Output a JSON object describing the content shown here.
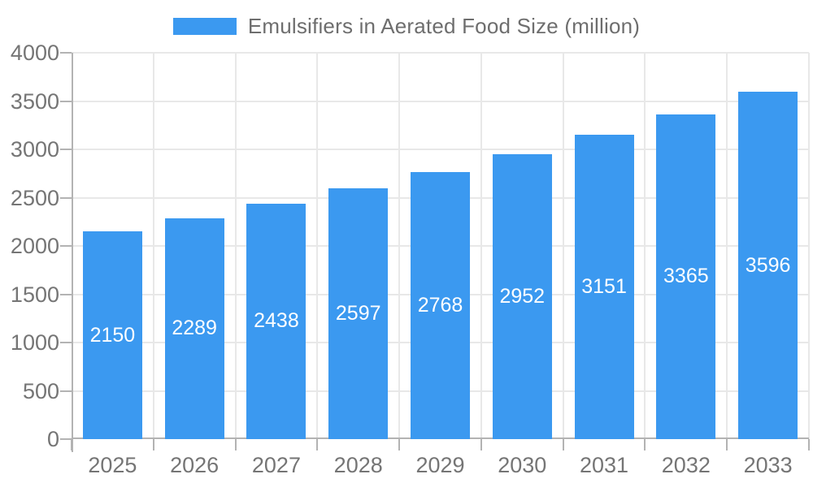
{
  "legend": {
    "label": "Emulsifiers in Aerated Food Size (million)",
    "swatch_color": "#3b99f0"
  },
  "chart_data": {
    "type": "bar",
    "categories": [
      "2025",
      "2026",
      "2027",
      "2028",
      "2029",
      "2030",
      "2031",
      "2032",
      "2033"
    ],
    "values": [
      2150,
      2289,
      2438,
      2597,
      2768,
      2952,
      3151,
      3365,
      3596
    ],
    "series_name": "Emulsifiers in Aerated Food Size (million)",
    "title": "",
    "xlabel": "",
    "ylabel": "",
    "ylim": [
      0,
      4000
    ],
    "y_ticks": [
      0,
      500,
      1000,
      1500,
      2000,
      2500,
      3000,
      3500,
      4000
    ],
    "grid": true,
    "legend_position": "top",
    "value_labels": "inside-center-white",
    "colors": {
      "bar": "#3b99f0",
      "value_label": "#ffffff",
      "tick_label": "#757575",
      "legend_label": "#6e6e6e",
      "gridline": "#e8e8e8",
      "axis_line": "#b3b3b3",
      "background": "#ffffff"
    }
  }
}
